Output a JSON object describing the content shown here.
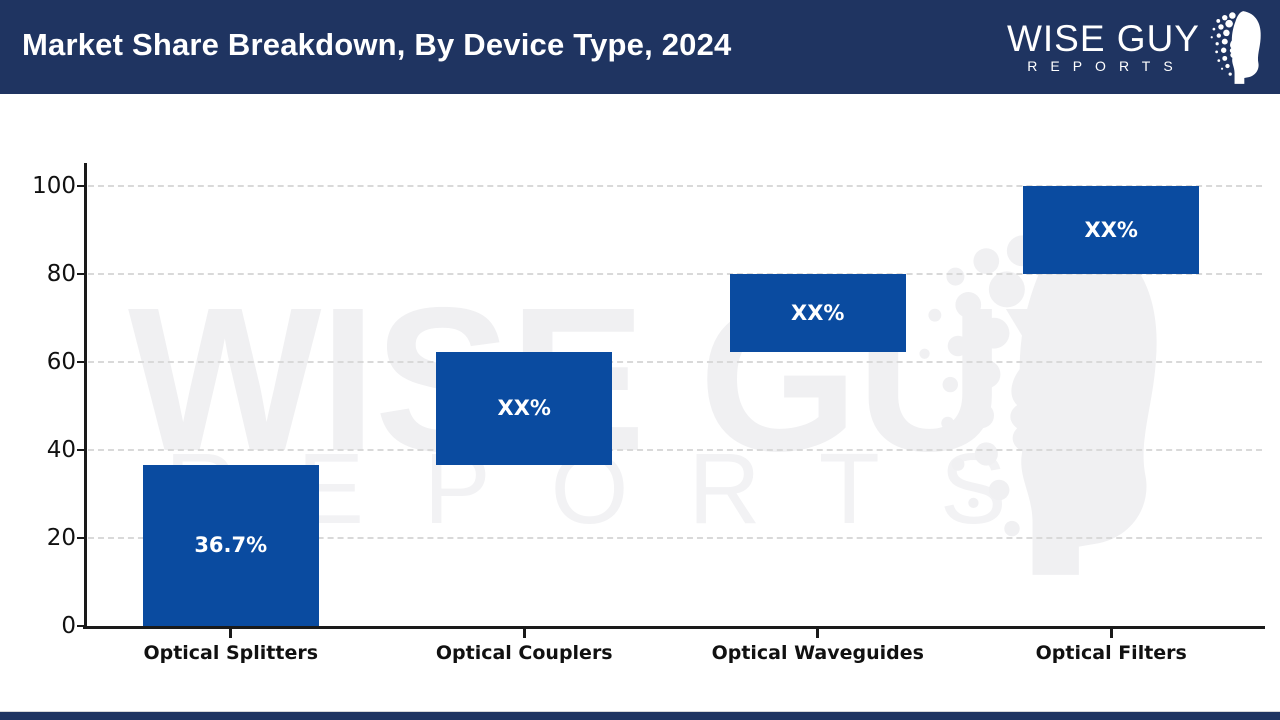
{
  "header": {
    "title": "Market Share Breakdown, By Device Type, 2024",
    "bg_color": "#1f3461",
    "logo": {
      "line1": "WISE GUY",
      "line2": "REPORTS"
    }
  },
  "watermark": {
    "line1": "WISE GUY",
    "line2": "REPORTS"
  },
  "chart_data": {
    "type": "bar",
    "subtype": "waterfall",
    "title": "Market Share Breakdown, By Device Type, 2024",
    "xlabel": "",
    "ylabel": "",
    "categories": [
      "Optical Splitters",
      "Optical Couplers",
      "Optical Waveguides",
      "Optical Filters"
    ],
    "segments": [
      {
        "category": "Optical Splitters",
        "start": 0,
        "end": 36.7,
        "label": "36.7%"
      },
      {
        "category": "Optical Couplers",
        "start": 36.7,
        "end": 62.3,
        "label": "XX%"
      },
      {
        "category": "Optical Waveguides",
        "start": 62.3,
        "end": 80,
        "label": "XX%"
      },
      {
        "category": "Optical Filters",
        "start": 80,
        "end": 100,
        "label": "XX%"
      }
    ],
    "y_ticks": [
      0,
      20,
      40,
      60,
      80,
      100
    ],
    "ylim": [
      0,
      105
    ],
    "grid": "horizontal-dashed",
    "legend": "none",
    "bar_color": "#0a4ba0",
    "bar_label_color": "#ffffff"
  }
}
